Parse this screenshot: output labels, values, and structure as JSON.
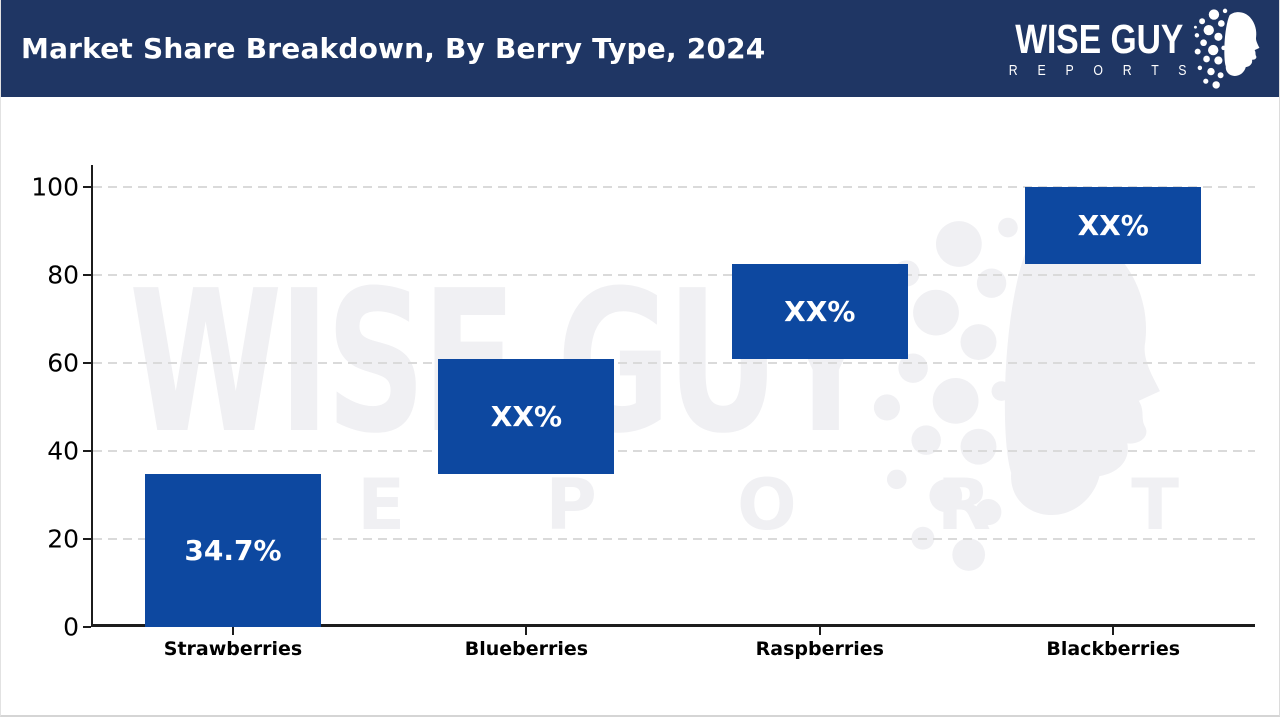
{
  "header": {
    "title": "Market Share Breakdown, By Berry Type, 2024",
    "logo": {
      "line1": "WISE GUY",
      "line2": "R E P O R T S"
    }
  },
  "watermark": {
    "line1": "WISE GUY",
    "line2": "R E P O R T S"
  },
  "colors": {
    "header_bg": "#1f3664",
    "bar_blue": "#0d48a0",
    "bar_label": "#ffffff",
    "gridline": "#dadada",
    "axis": "#1c1c1c",
    "watermark_gray": "#f0f0f3"
  },
  "chart_data": {
    "type": "bar",
    "variant": "waterfall",
    "title": "Market Share Breakdown, By Berry Type, 2024",
    "categories": [
      "Strawberries",
      "Blueberries",
      "Raspberries",
      "Blackberries"
    ],
    "segments": [
      {
        "category": "Strawberries",
        "start": 0,
        "end": 34.7,
        "value": 34.7,
        "label": "34.7%"
      },
      {
        "category": "Blueberries",
        "start": 34.7,
        "end": 61.0,
        "value": 26.3,
        "label": "XX%"
      },
      {
        "category": "Raspberries",
        "start": 61.0,
        "end": 82.6,
        "value": 21.6,
        "label": "XX%"
      },
      {
        "category": "Blackberries",
        "start": 82.6,
        "end": 100.0,
        "value": 17.4,
        "label": "XX%"
      }
    ],
    "yticks": [
      0,
      20,
      40,
      60,
      80,
      100
    ],
    "ylim": [
      0,
      105
    ],
    "xlabel": "",
    "ylabel": "",
    "grid": "horizontal-dashed",
    "legend": "none",
    "bar_color": "#0d48a0",
    "bar_label_color": "#ffffff"
  }
}
